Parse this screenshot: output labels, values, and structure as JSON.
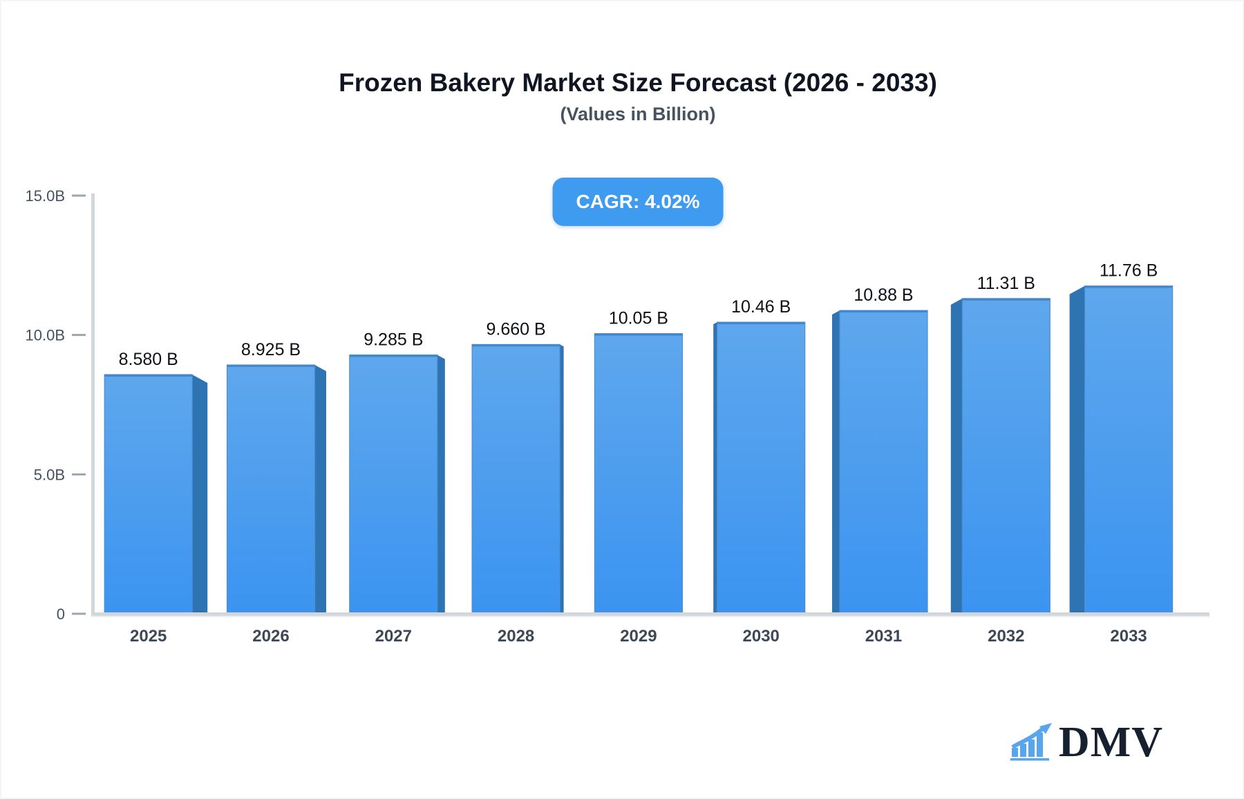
{
  "chart_data": {
    "type": "bar",
    "title": "Frozen Bakery Market Size Forecast (2026 - 2033)",
    "subtitle": "(Values in Billion)",
    "annotation": "CAGR: 4.02%",
    "categories": [
      "2025",
      "2026",
      "2027",
      "2028",
      "2029",
      "2030",
      "2031",
      "2032",
      "2033"
    ],
    "values": [
      8.58,
      8.925,
      9.285,
      9.66,
      10.05,
      10.46,
      10.88,
      11.31,
      11.76
    ],
    "value_labels": [
      "8.580 B",
      "8.925 B",
      "9.285 B",
      "9.660 B",
      "10.05 B",
      "10.46 B",
      "10.88 B",
      "11.31 B",
      "11.76 B"
    ],
    "y_ticks": [
      {
        "value": 0,
        "label": "0"
      },
      {
        "value": 5,
        "label": "5.0B"
      },
      {
        "value": 10,
        "label": "10.0B"
      },
      {
        "value": 15,
        "label": "15.0B"
      }
    ],
    "ylim": [
      0,
      15
    ],
    "grid": "off",
    "legend": "none",
    "effect": "3d-perspective-bars",
    "style": {
      "bar_face_top": "#5fa7ed",
      "bar_face_bottom": "#3b94f0",
      "bar_side": "#2e74b3",
      "bar_top_edge": "#4487ca",
      "bar_face_border": "#4b8ed2",
      "axis_line": "#d3d7dc",
      "tick_dash": "#9ca6b0",
      "tick_label_color": "#45505f",
      "category_label_color": "#3d4857",
      "value_label_color": "#0d1117"
    }
  },
  "badge": {
    "bg": "#3f9bf0",
    "text_color": "#ffffff"
  },
  "logo": {
    "text": "DMV",
    "icon": "rising-bar-chart-arrow-icon",
    "icon_color": "#56a5ee",
    "text_color": "#16202f"
  }
}
